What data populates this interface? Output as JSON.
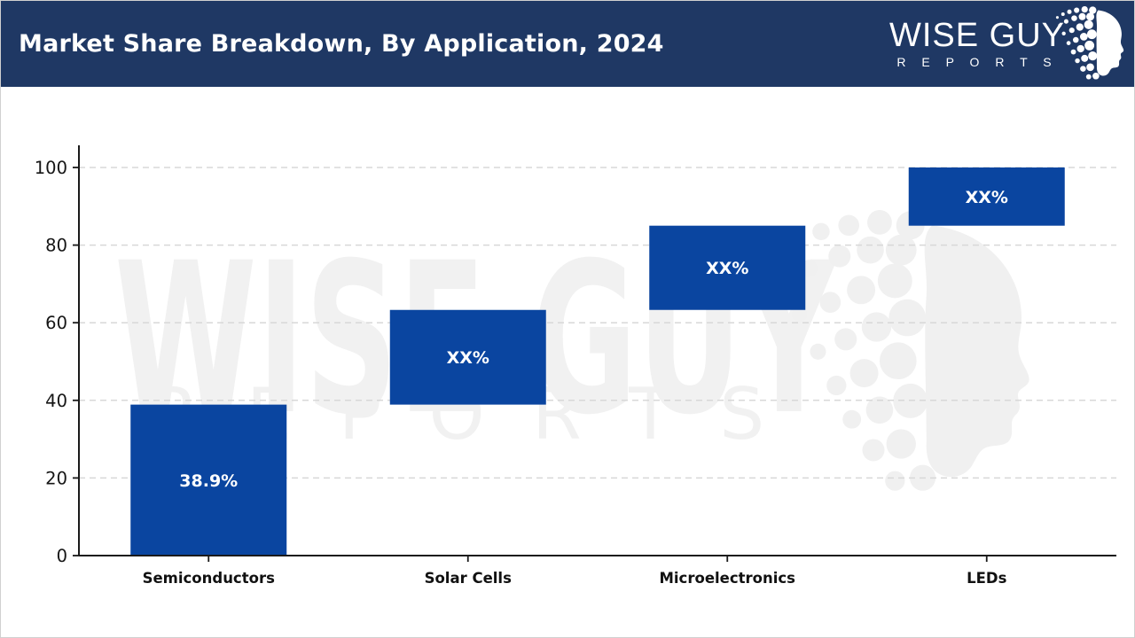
{
  "header": {
    "title": "Market Share Breakdown, By Application, 2024",
    "bg_color": "#1f3864",
    "logo": {
      "line1": "WISE GUY",
      "line2": "R E P O R T S"
    }
  },
  "watermark": {
    "line1": "WISE GUY",
    "line2": "R E P O R T S"
  },
  "chart_data": {
    "type": "bar",
    "subtype": "waterfall-stacked-percentage",
    "title": "Market Share Breakdown, By Application, 2024",
    "categories": [
      "Semiconductors",
      "Solar Cells",
      "Microelectronics",
      "LEDs"
    ],
    "segments": [
      {
        "category": "Semiconductors",
        "start": 0,
        "end": 38.9,
        "label": "38.9%"
      },
      {
        "category": "Solar Cells",
        "start": 38.9,
        "end": 63.3,
        "label": "XX%"
      },
      {
        "category": "Microelectronics",
        "start": 63.3,
        "end": 85.0,
        "label": "XX%"
      },
      {
        "category": "LEDs",
        "start": 85.0,
        "end": 100,
        "label": "XX%"
      }
    ],
    "xlabel": "",
    "ylabel": "",
    "yticks": [
      0,
      20,
      40,
      60,
      80,
      100
    ],
    "ylim": [
      0,
      106
    ],
    "grid": "horizontal-dashed",
    "legend_position": "none",
    "bar_color": "#0a45a0",
    "grid_color": "#d8d8d8",
    "axis_color": "#1a1a1a"
  }
}
